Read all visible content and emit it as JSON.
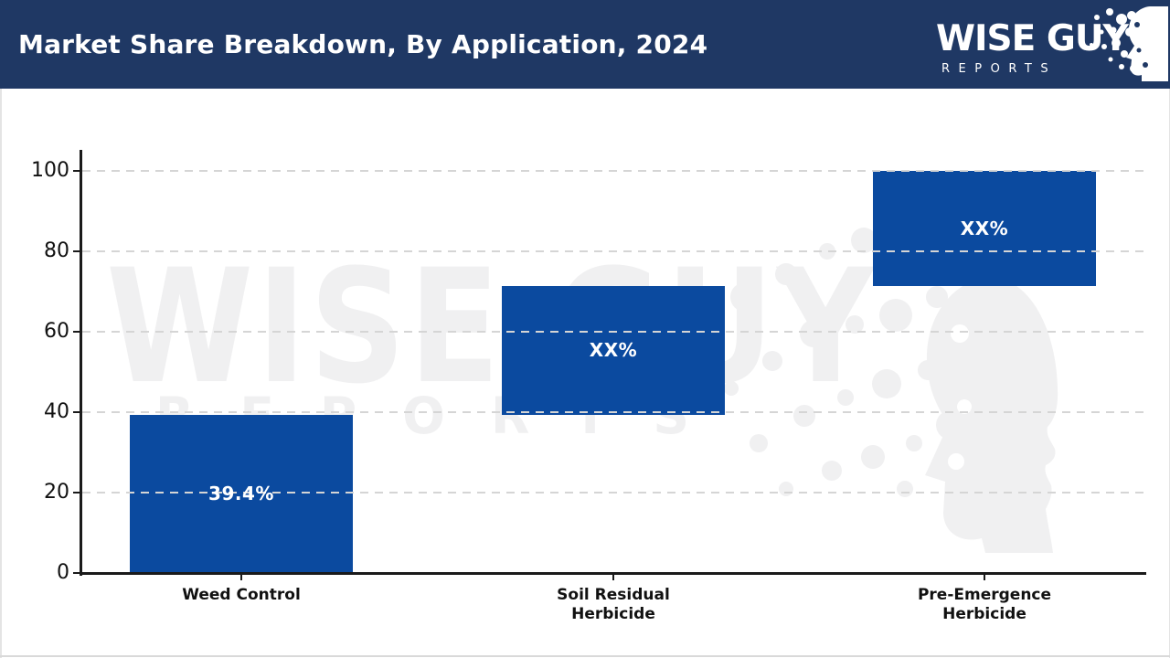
{
  "header": {
    "title": "Market Share Breakdown, By Application, 2024",
    "logo": {
      "line1": "WISE GUY",
      "line2": "REPORTS"
    }
  },
  "watermark": {
    "line1": "WISE GUY",
    "line2": "REPORTS"
  },
  "chart_data": {
    "type": "bar",
    "variant": "stacked-percentage-waterfall",
    "title": "Market Share Breakdown, By Application, 2024",
    "categories": [
      "Weed Control",
      "Soil Residual\nHerbicide",
      "Pre-Emergence\nHerbicide"
    ],
    "segments": [
      {
        "category": "Weed Control",
        "from": 0,
        "to": 39.4,
        "label": "39.4%"
      },
      {
        "category": "Soil Residual Herbicide",
        "from": 39.4,
        "to": 71.3,
        "label": "XX%"
      },
      {
        "category": "Pre-Emergence Herbicide",
        "from": 71.3,
        "to": 100,
        "label": "XX%"
      }
    ],
    "values_pct": [
      39.4,
      31.9,
      28.7
    ],
    "y_ticks": [
      0,
      20,
      40,
      60,
      80,
      100
    ],
    "ylim": [
      0,
      105
    ],
    "xlabel": "",
    "ylabel": "",
    "grid": "dashed-horizontal",
    "legend": "none",
    "colors": {
      "bar": "#0b4a9f",
      "value_label": "#ffffff",
      "axis": "#1a1a1a",
      "gridline": "#d5d5d5",
      "header_bg": "#1f3864",
      "watermark": "#f0f0f1"
    }
  }
}
